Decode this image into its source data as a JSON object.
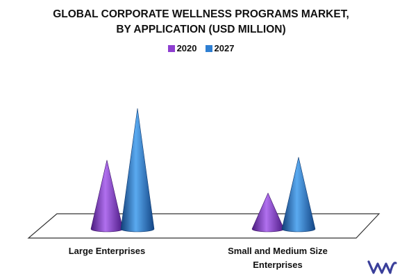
{
  "chart_data": {
    "type": "bar",
    "style": "3d-cone",
    "title_line1": "GLOBAL CORPORATE WELLNESS PROGRAMS MARKET,",
    "title_line2": "BY APPLICATION (USD MILLION)",
    "categories": [
      "Large Enterprises",
      "Small and Medium Size Enterprises"
    ],
    "category_label_lines": [
      [
        "Large Enterprises"
      ],
      [
        "Small and Medium Size",
        "Enterprises"
      ]
    ],
    "series": [
      {
        "name": "2020",
        "values": [
          48,
          25
        ],
        "color": "#8e3fd0"
      },
      {
        "name": "2027",
        "values": [
          84,
          50
        ],
        "color": "#2f7fd2"
      }
    ],
    "ylim": [
      0,
      90
    ],
    "gridlines": false,
    "legend_position": "top-center"
  },
  "logo": {
    "icon": "vmr-logo-icon",
    "color": "#3a3f9a"
  }
}
